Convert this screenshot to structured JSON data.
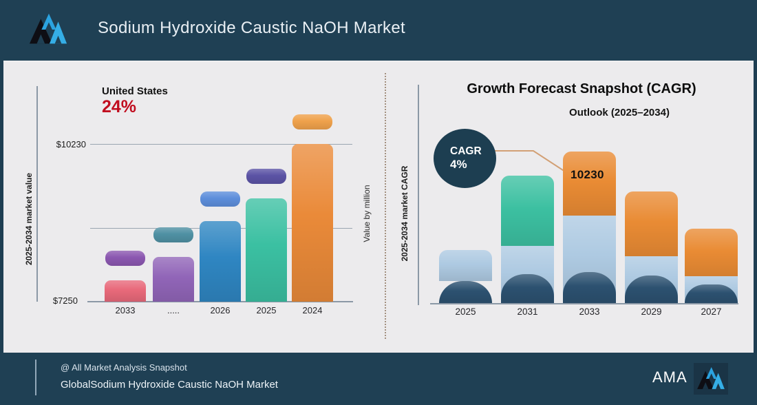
{
  "header": {
    "title": "Sodium Hydroxide Caustic NaOH Market"
  },
  "left_chart": {
    "region_label": "United States",
    "region_value": "24%",
    "y_axis_label": "2025-2034 market value",
    "ytick_top": "$10230",
    "ytick_bottom": "$7250"
  },
  "middle": {
    "left_axis_label": "Value by million",
    "right_axis_label": "2025-2034 market CAGR"
  },
  "right_chart": {
    "title": "Growth Forecast Snapshot (CAGR)",
    "subtitle": "Outlook (2025–2034)",
    "badge_line1": "CAGR",
    "badge_line2": "4%",
    "bar_value_label": "10230"
  },
  "footer": {
    "line1": "@ All Market Analysis Snapshot",
    "line2": "GlobalSodium Hydroxide Caustic NaOH Market",
    "brand": "AMA"
  },
  "colors": {
    "header_bg": "#1f4054",
    "panel_bg": "#ecebed",
    "accent_red": "#c10d1f",
    "badge_navy": "#1d3e51",
    "connector": "#d2a075",
    "axis": "#8b98a6",
    "grid": "#9aa5b0",
    "logo_black": "#0e0e14",
    "logo_blue": "#2ba3e0",
    "left_bar_colors": [
      "#e8697a",
      "#9165b8",
      "#2f86c2",
      "#3bc0a2",
      "#ea8a39"
    ],
    "left_cap_colors": [
      "#8b57b0",
      "#4f90a3",
      "#5d8edb",
      "#5b53a5",
      "#efa14b"
    ],
    "right_segment_colors": {
      "lightblue": "#aecae2",
      "navy": "#2c5170",
      "teal": "#3cc0a1",
      "orange": "#e98b34"
    }
  },
  "chart_data": [
    {
      "type": "bar",
      "title": "United States",
      "annotation": "24%",
      "ylabel": "2025-2034 market value",
      "secondary_ylabel": "Value by million",
      "categories": [
        "2033",
        ".....",
        "2026",
        "2025",
        "2024"
      ],
      "values": [
        7640,
        8080,
        8760,
        9200,
        10230
      ],
      "yticks": [
        {
          "label": "$7250",
          "value": 7250
        },
        {
          "label": "$10230",
          "value": 10230
        }
      ],
      "ylim": [
        7250,
        10230
      ],
      "grid": "horizontal",
      "legend": "none"
    },
    {
      "type": "stacked-bar",
      "title": "Growth Forecast Snapshot (CAGR)",
      "subtitle": "Outlook (2025–2034)",
      "ylabel": "2025-2034 market CAGR",
      "annotation": {
        "text": "CAGR 4%",
        "points_to": "2033"
      },
      "categories": [
        "2025",
        "2031",
        "2033",
        "2029",
        "2027"
      ],
      "bars": [
        {
          "category": "2025",
          "total": 3580,
          "label": "",
          "segments": [
            {
              "color": "lightblue",
              "value": 2090
            },
            {
              "color": "navy",
              "value": 1490
            }
          ]
        },
        {
          "category": "2031",
          "total": 8600,
          "label": "",
          "segments": [
            {
              "color": "teal",
              "value": 4740
            },
            {
              "color": "lightblue",
              "value": 1910
            },
            {
              "color": "navy",
              "value": 1950
            }
          ]
        },
        {
          "category": "2033",
          "total": 10230,
          "label": "10230",
          "segments": [
            {
              "color": "orange",
              "value": 4320
            },
            {
              "color": "lightblue",
              "value": 3810
            },
            {
              "color": "navy",
              "value": 2100
            }
          ]
        },
        {
          "category": "2029",
          "total": 7530,
          "label": "",
          "segments": [
            {
              "color": "orange",
              "value": 4370
            },
            {
              "color": "lightblue",
              "value": 1300
            },
            {
              "color": "navy",
              "value": 1860
            }
          ]
        },
        {
          "category": "2027",
          "total": 5020,
          "label": "",
          "segments": [
            {
              "color": "orange",
              "value": 3210
            },
            {
              "color": "lightblue",
              "value": 560
            },
            {
              "color": "navy",
              "value": 1250
            }
          ]
        }
      ],
      "value_scale_ref": {
        "value": 10230,
        "px": 220
      },
      "grid": "off",
      "legend": "none"
    }
  ]
}
